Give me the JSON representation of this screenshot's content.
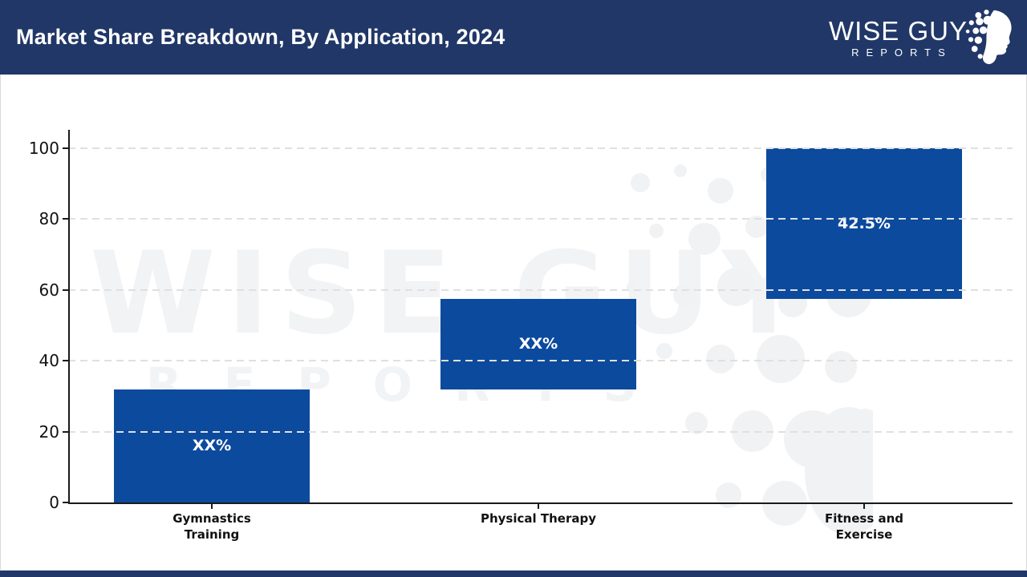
{
  "header": {
    "title": "Market Share Breakdown, By Application, 2024",
    "brand": {
      "name_top": "WISE GUY",
      "name_bottom": "REPORTS"
    },
    "bg_color": "#203767",
    "text_color": "#ffffff"
  },
  "watermark": {
    "line1": "WISE GUY",
    "line2": "REPORTS"
  },
  "chart_data": {
    "type": "bar",
    "subtype": "floating-waterfall",
    "title": "Market Share Breakdown, By Application, 2024",
    "categories": [
      "Gymnastics\nTraining",
      "Physical Therapy",
      "Fitness and\nExercise"
    ],
    "segments": [
      {
        "category": "Gymnastics Training",
        "start": 0,
        "end": 32,
        "label": "XX%"
      },
      {
        "category": "Physical Therapy",
        "start": 32,
        "end": 57.5,
        "label": "XX%"
      },
      {
        "category": "Fitness and Exercise",
        "start": 57.5,
        "end": 100,
        "label": "42.5%"
      }
    ],
    "yticks": [
      0,
      20,
      40,
      60,
      80,
      100
    ],
    "ylim": [
      0,
      105
    ],
    "xlabel": "",
    "ylabel": "",
    "grid": "horizontal-dashed",
    "legend": "none",
    "bar_color": "#0c4a9e",
    "value_label_color": "#ffffff"
  }
}
